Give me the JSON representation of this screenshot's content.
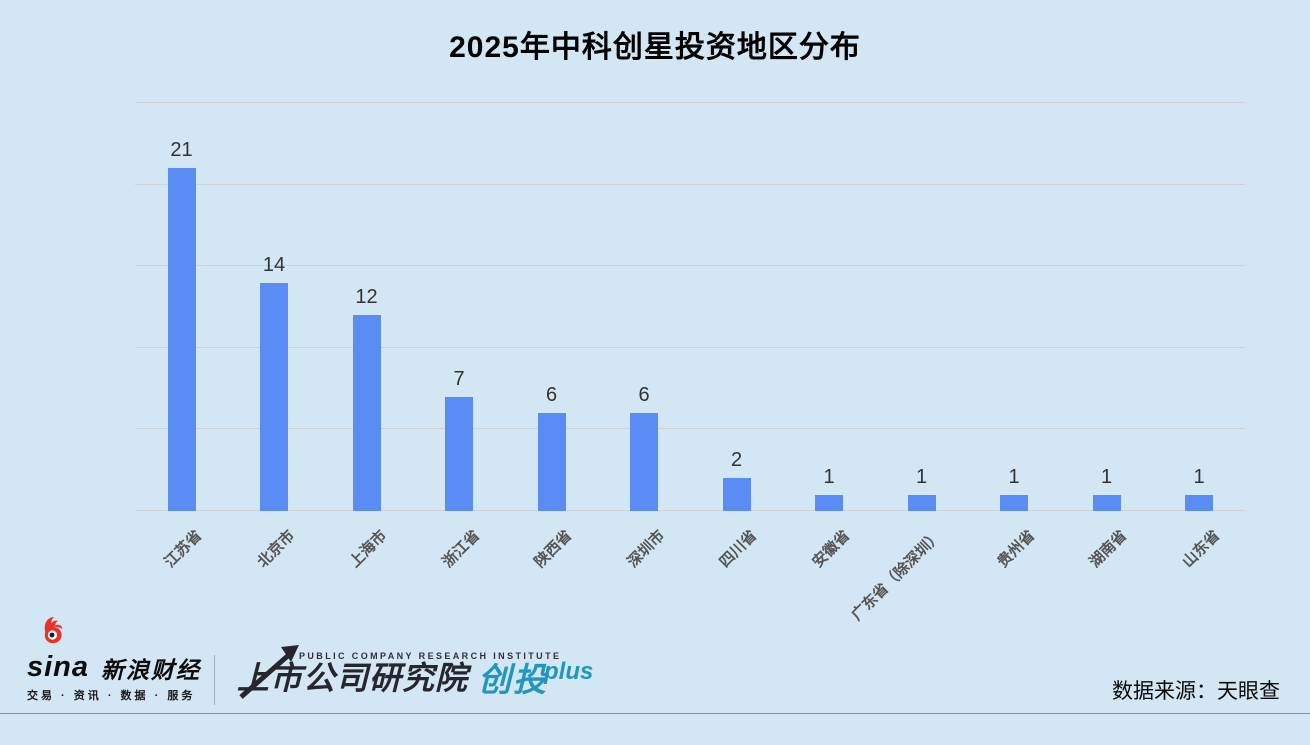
{
  "title": "2025年中科创星投资地区分布",
  "chart_data": {
    "type": "bar",
    "title": "2025年中科创星投资地区分布",
    "categories": [
      "江苏省",
      "北京市",
      "上海市",
      "浙江省",
      "陕西省",
      "深圳市",
      "四川省",
      "安徽省",
      "广东省（除深圳）",
      "贵州省",
      "湖南省",
      "山东省"
    ],
    "values": [
      21,
      14,
      12,
      7,
      6,
      6,
      2,
      1,
      1,
      1,
      1,
      1
    ],
    "xlabel": "",
    "ylabel": "",
    "ylim": [
      0,
      25
    ],
    "grid": "on",
    "grid_step": 5,
    "y_tick_labels_visible": false,
    "legend": "none",
    "value_labels": "above-bars",
    "category_label_rotation_deg": -45
  },
  "colors": {
    "background": "#d3e6f3",
    "bar": "#5b8cf4",
    "gridline": "#ccd3d8",
    "value_label": "#333333",
    "category_label": "#555555",
    "brand_teal": "#2196be",
    "sina_red": "#e6342a",
    "footer_rule": "#8c8c8c"
  },
  "footer": {
    "sina_logo_text": "sina",
    "sina_brand": "新浪财经",
    "sina_tagline": "交易 · 资讯 · 数据 · 服务",
    "institute_en": "PUBLIC COMPANY RESEARCH INSTITUTE",
    "institute_cn": "上市公司研究院",
    "sub_brand_cn": "创投",
    "sub_brand_suffix": "plus",
    "source": "数据来源：天眼查"
  }
}
